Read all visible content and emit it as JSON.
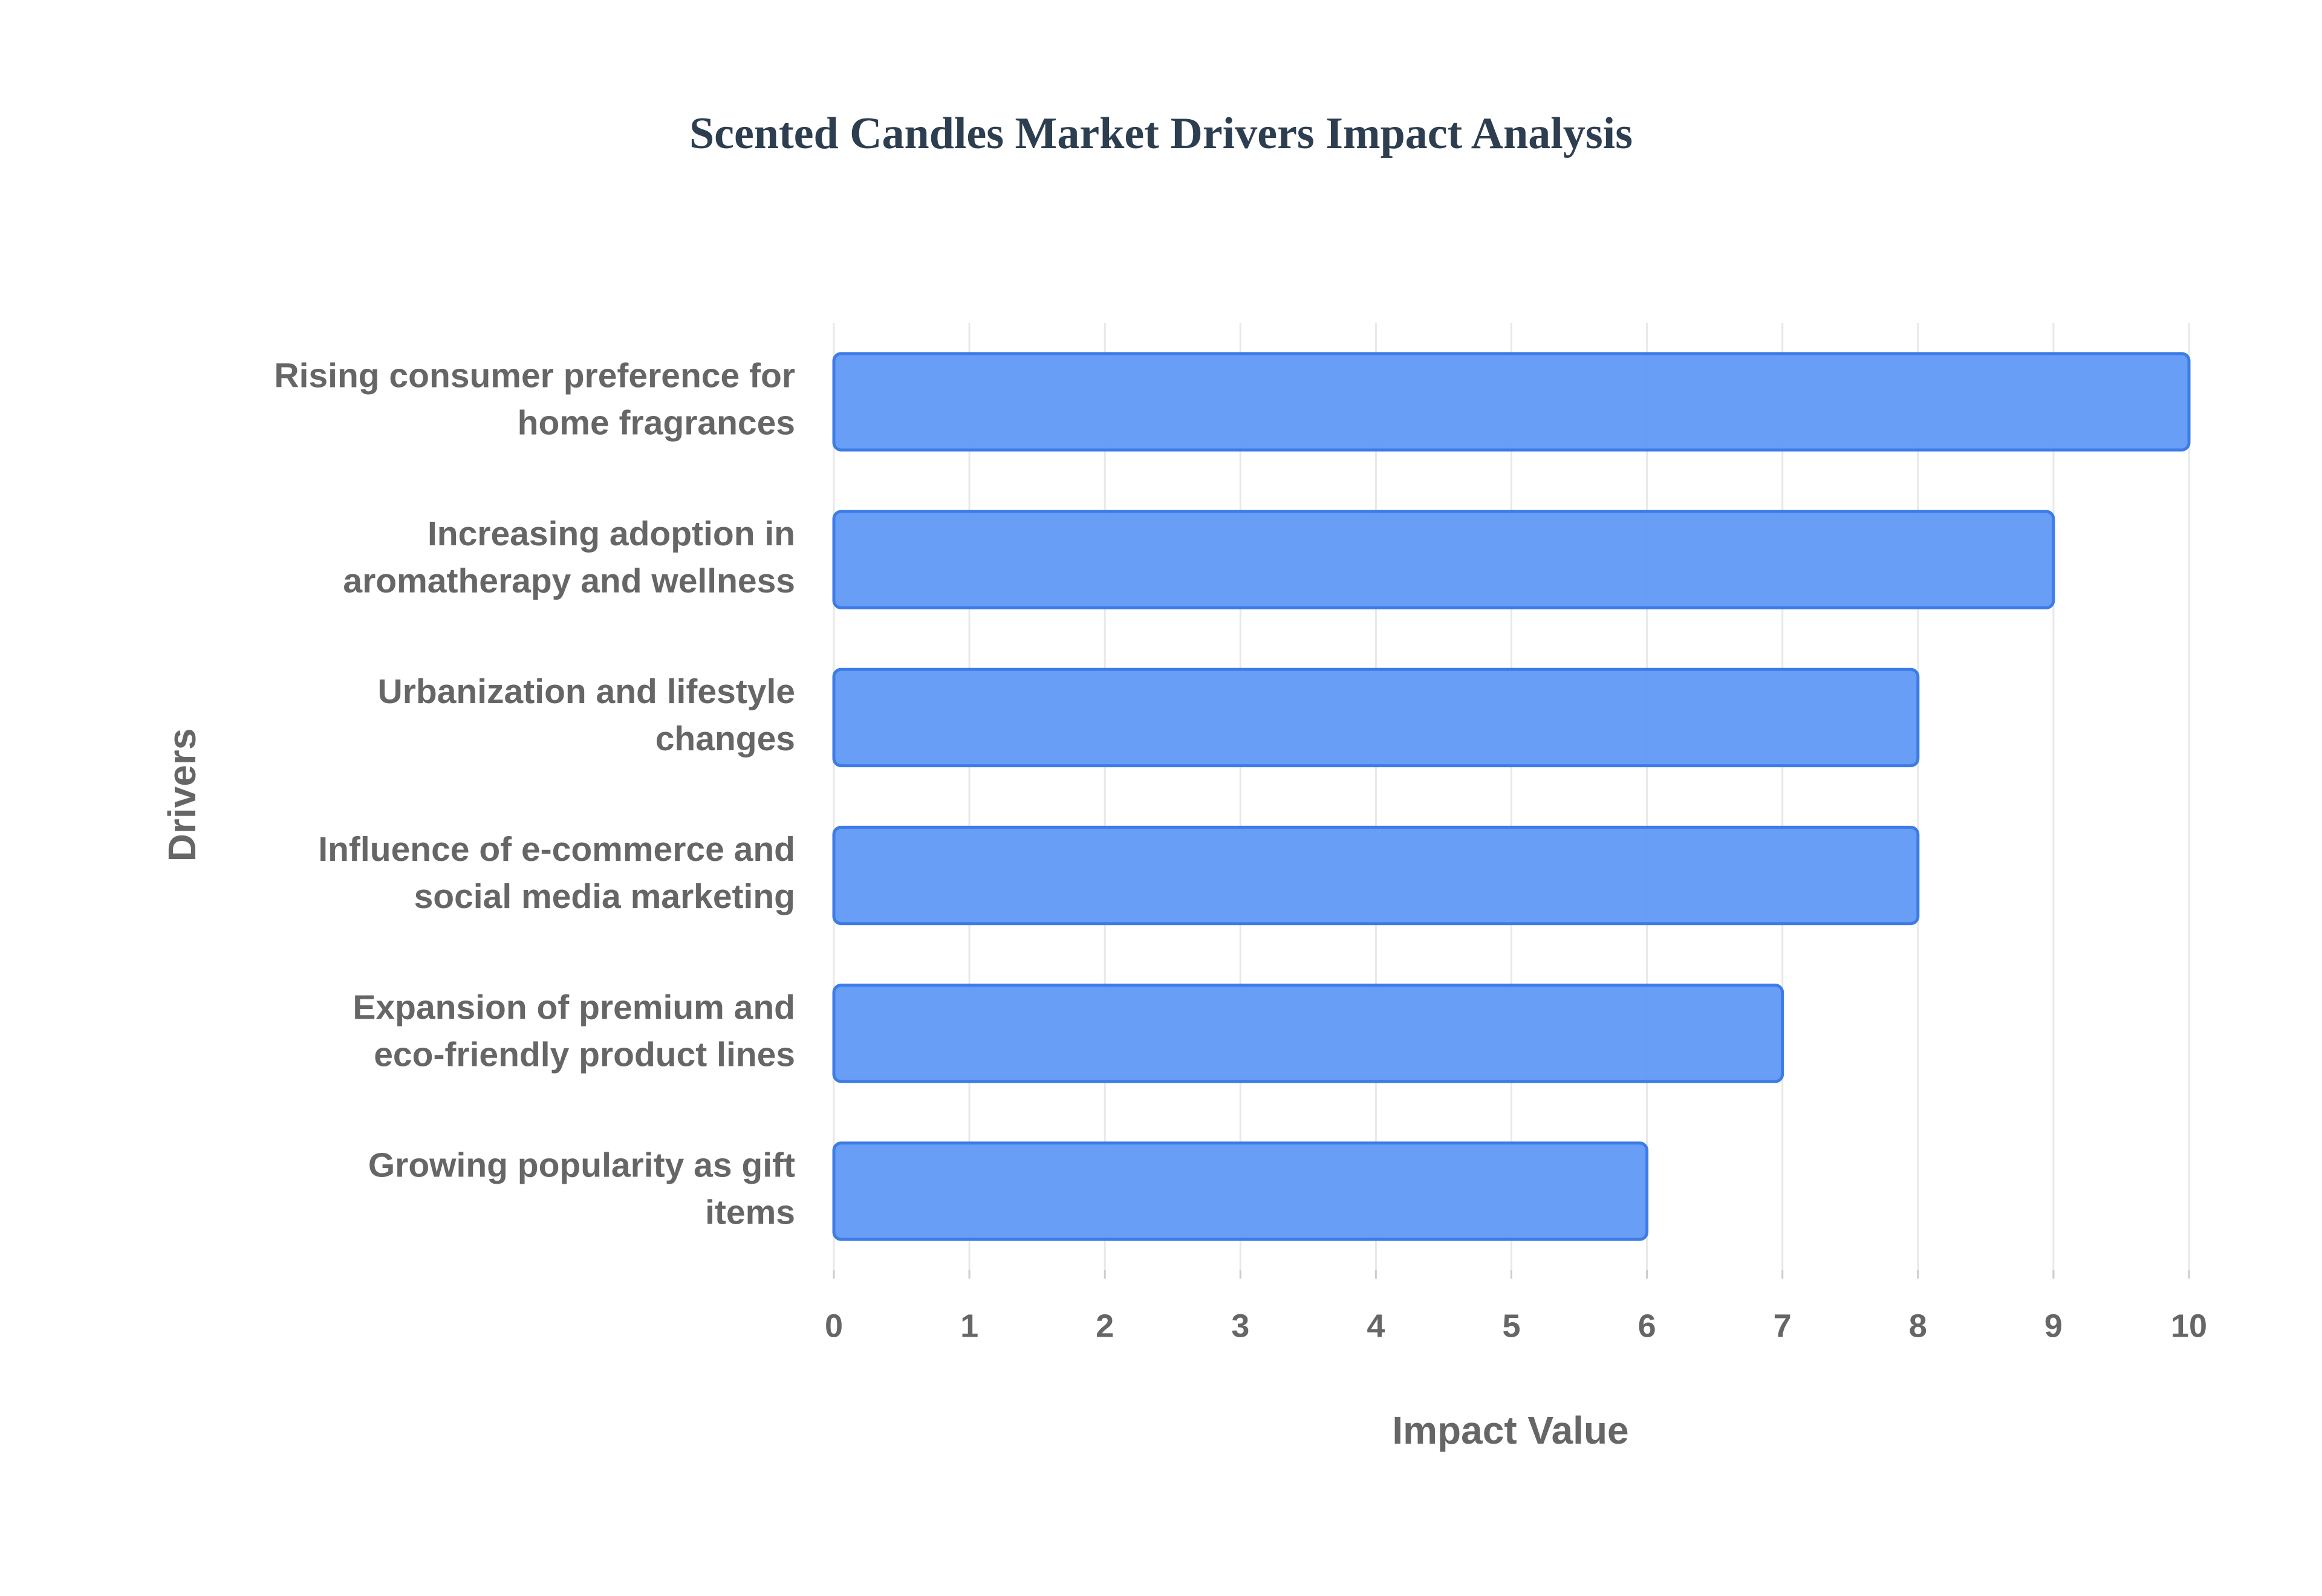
{
  "chart_data": {
    "type": "hbar",
    "title": "Scented Candles Market Drivers Impact Analysis",
    "x_label": "Impact Value",
    "y_label": "Drivers",
    "categories": [
      "Rising consumer preference for home fragrances",
      "Increasing adoption in aromatherapy and wellness",
      "Urbanization and lifestyle changes",
      "Influence of e-commerce and social media marketing",
      "Expansion of premium and eco-friendly product lines",
      "Growing popularity as gift items"
    ],
    "values": [
      10,
      9,
      8,
      8,
      7,
      6
    ],
    "color": "#6199f5",
    "xlim": [
      0,
      10
    ],
    "xticks": [
      0,
      1,
      2,
      3,
      4,
      5,
      6,
      7,
      8,
      9,
      10
    ],
    "grid": true
  }
}
